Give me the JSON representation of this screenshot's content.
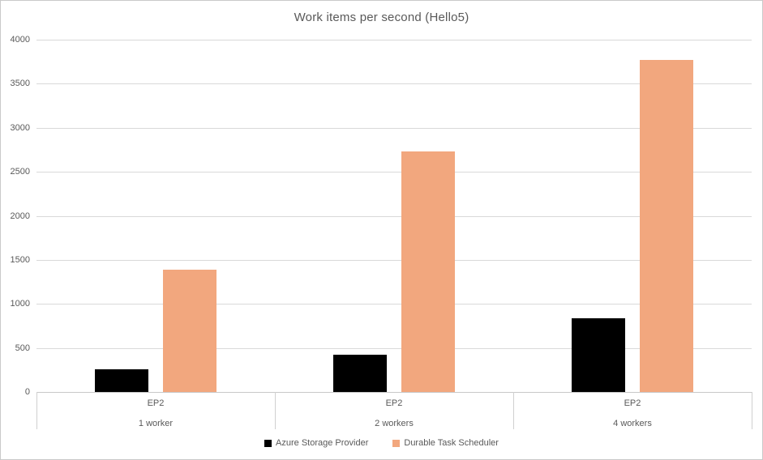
{
  "chart_data": {
    "type": "bar",
    "title": "Work items per second (Hello5)",
    "xlabel": "",
    "ylabel": "",
    "ylim": [
      0,
      4000
    ],
    "ytick_step": 500,
    "yticks": [
      0,
      500,
      1000,
      1500,
      2000,
      2500,
      3000,
      3500,
      4000
    ],
    "grid": true,
    "legend_position": "bottom",
    "categories": [
      {
        "tier1": "EP2",
        "tier2": "1 worker"
      },
      {
        "tier1": "EP2",
        "tier2": "2 workers"
      },
      {
        "tier1": "EP2",
        "tier2": "4 workers"
      }
    ],
    "series": [
      {
        "name": "Azure Storage Provider",
        "color": "#000000",
        "values": [
          260,
          420,
          840
        ]
      },
      {
        "name": "Durable Task Scheduler",
        "color": "#F2A77E",
        "values": [
          1390,
          2730,
          3770
        ]
      }
    ]
  },
  "colors": {
    "background": "#FFFFFF",
    "title_text": "#595959",
    "axis_text": "#595959",
    "gridline": "#D9D9D9",
    "axis_line": "#C8C8C8",
    "frame_border": "#C9C9C9"
  }
}
